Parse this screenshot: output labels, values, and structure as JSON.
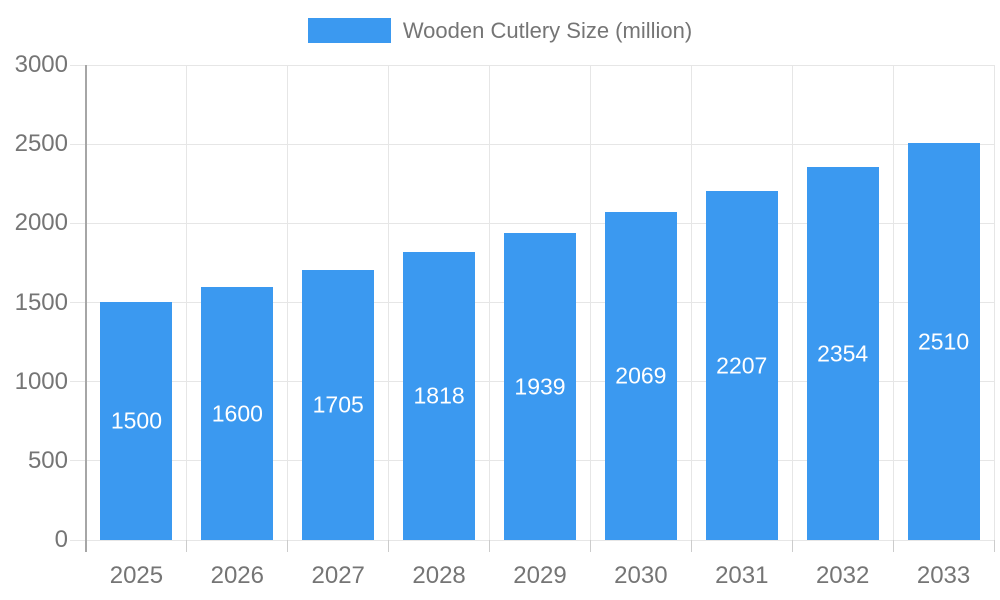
{
  "chart_data": {
    "type": "bar",
    "title": "Wooden Cutlery Size (million)",
    "legend": {
      "label": "Wooden Cutlery Size (million)",
      "position": "top"
    },
    "categories": [
      "2025",
      "2026",
      "2027",
      "2028",
      "2029",
      "2030",
      "2031",
      "2032",
      "2033"
    ],
    "series": [
      {
        "name": "Wooden Cutlery Size (million)",
        "values": [
          1500,
          1600,
          1705,
          1818,
          1939,
          2069,
          2207,
          2354,
          2510
        ]
      }
    ],
    "xlabel": "",
    "ylabel": "",
    "ylim": [
      0,
      3000
    ],
    "yticks": [
      0,
      500,
      1000,
      1500,
      2000,
      2500,
      3000
    ],
    "grid": true,
    "value_label_position": "inside-center"
  },
  "colors": {
    "bar": "#3B99F0",
    "axis_text": "#757575",
    "value_text": "#FFFFFF",
    "gridline": "#E6E6E6",
    "axis_line": "#A6A6A6",
    "tick": "#CCCCCC",
    "background": "#FFFFFF"
  }
}
